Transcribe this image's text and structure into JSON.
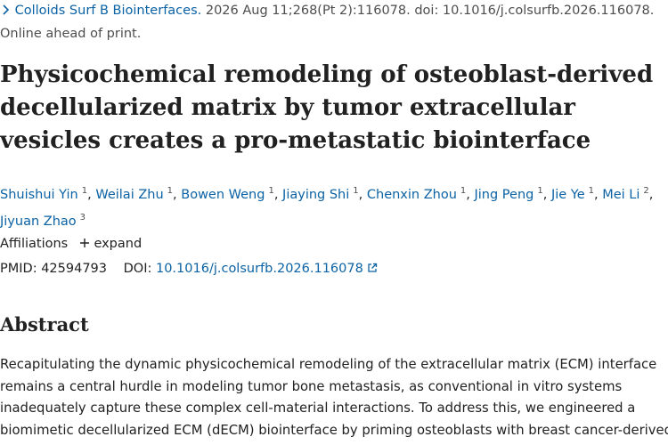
{
  "citation": {
    "journal": "Colloids Surf B Biointerfaces.",
    "details": "2026 Aug 11;268(Pt 2):116078. doi: 10.1016/j.colsurfb.2026.116078.",
    "status": "Online ahead of print."
  },
  "title": "Physicochemical remodeling of osteoblast-derived decellularized matrix by tumor extracellular vesicles creates a pro-metastatic biointerface",
  "author_separator": ",",
  "authors": [
    {
      "name": "Shuishui Yin",
      "aff": "1"
    },
    {
      "name": "Weilai Zhu",
      "aff": "1"
    },
    {
      "name": "Bowen Weng",
      "aff": "1"
    },
    {
      "name": "Jiaying Shi",
      "aff": "1"
    },
    {
      "name": "Chenxin Zhou",
      "aff": "1"
    },
    {
      "name": "Jing Peng",
      "aff": "1"
    },
    {
      "name": "Jie Ye",
      "aff": "1"
    },
    {
      "name": "Mei Li",
      "aff": "2"
    },
    {
      "name": "Jiyuan Zhao",
      "aff": "3"
    }
  ],
  "affiliations": {
    "label": "Affiliations",
    "toggle": "expand"
  },
  "ids": {
    "pmid_label": "PMID:",
    "pmid": "42594793",
    "doi_label": "DOI:",
    "doi": "10.1016/j.colsurfb.2026.116078"
  },
  "abstract": {
    "heading": "Abstract",
    "lines": [
      "Recapitulating the dynamic physicochemical remodeling of the extracellular matrix (ECM) interface",
      "remains a central hurdle in modeling tumor bone metastasis, as conventional in vitro systems",
      "inadequately capture these complex cell-material interactions. To address this, we engineered a",
      "biomimetic decellularized ECM (dECM) biointerface by priming osteoblasts with breast cancer-derived"
    ]
  }
}
